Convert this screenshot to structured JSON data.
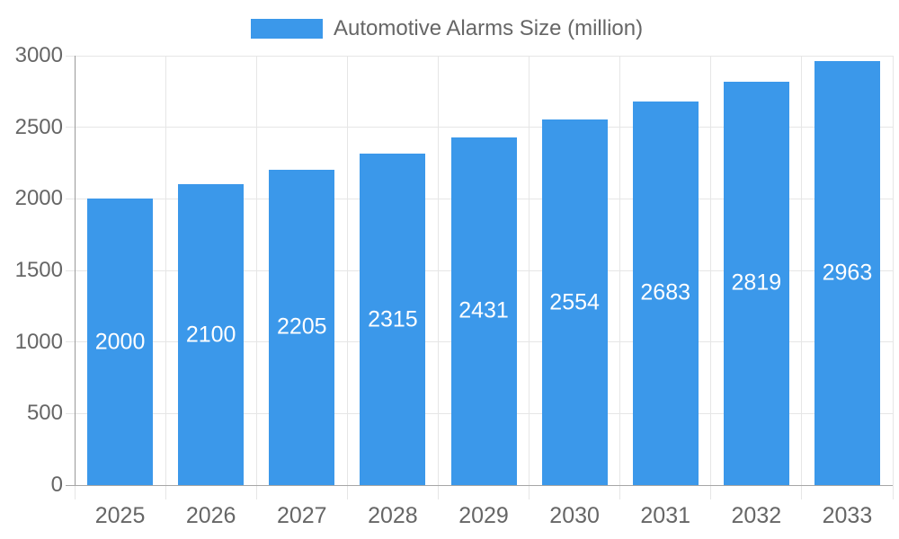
{
  "legend": {
    "label": "Automotive Alarms Size (million)"
  },
  "chart_data": {
    "type": "bar",
    "title": "Automotive Alarms Size (million)",
    "series_name": "Automotive Alarms Size (million)",
    "categories": [
      "2025",
      "2026",
      "2027",
      "2028",
      "2029",
      "2030",
      "2031",
      "2032",
      "2033"
    ],
    "values": [
      2000,
      2100,
      2205,
      2315,
      2431,
      2554,
      2683,
      2819,
      2963
    ],
    "value_labels": [
      "2000",
      "2100",
      "2205",
      "2315",
      "2431",
      "2554",
      "2683",
      "2819",
      "2963"
    ],
    "xlabel": "",
    "ylabel": "",
    "ylim": [
      0,
      3000
    ],
    "yticks": [
      0,
      500,
      1000,
      1500,
      2000,
      2500,
      3000
    ],
    "ytick_labels": [
      "0",
      "500",
      "1000",
      "1500",
      "2000",
      "2500",
      "3000"
    ],
    "grid": true,
    "legend_position": "top",
    "bar_label_position": "inside-center"
  },
  "colors": {
    "bar": "#3b98ea",
    "bar_label": "#ffffff",
    "gridline": "#e6e6e6",
    "axis_line": "#999999",
    "tick_text": "#666666",
    "background": "#ffffff"
  }
}
